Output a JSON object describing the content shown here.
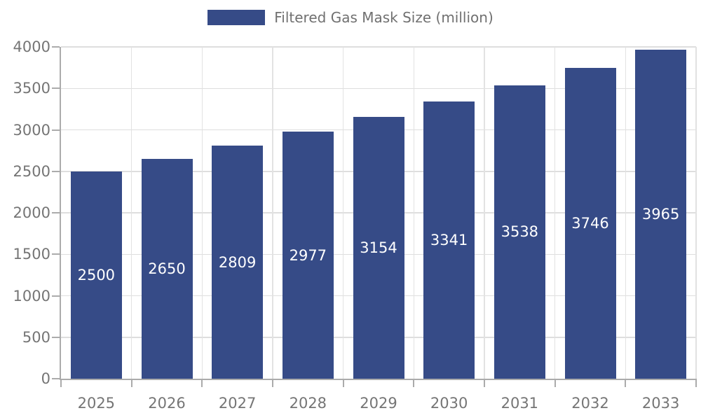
{
  "chart_data": {
    "type": "bar",
    "title": "Filtered Gas Mask Size (million)",
    "series_name": "Filtered Gas Mask Size (million)",
    "categories": [
      "2025",
      "2026",
      "2027",
      "2028",
      "2029",
      "2030",
      "2031",
      "2032",
      "2033"
    ],
    "values": [
      2500,
      2650,
      2809,
      2977,
      3154,
      3341,
      3538,
      3746,
      3965
    ],
    "xlabel": "",
    "ylabel": "",
    "ylim": [
      0,
      4000
    ],
    "yticks": [
      0,
      500,
      1000,
      1500,
      2000,
      2500,
      3000,
      3500,
      4000
    ],
    "grid": true,
    "legend_position": "top-center",
    "bar_color": "#364b87",
    "bar_label_color": "#ffffff",
    "grid_color": "#dedede",
    "axis_color": "#ababab",
    "tick_label_color": "#757575",
    "legend_text_color": "#707070",
    "background_color": "#ffffff"
  }
}
